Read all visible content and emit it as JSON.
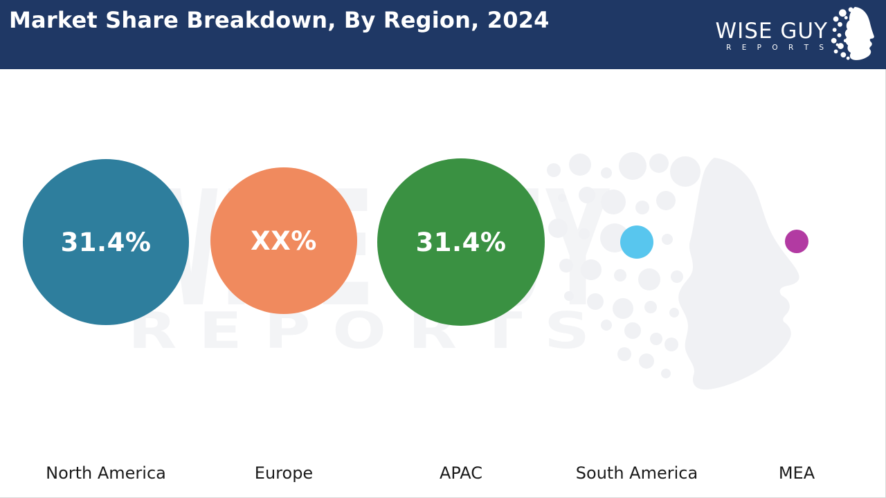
{
  "header": {
    "title": "Market Share Breakdown, By Region, 2024"
  },
  "logo": {
    "line1": "WISE GUY",
    "line2": "R E P O R T S"
  },
  "watermark": {
    "line1": "WISE GUY",
    "line2": "R E P O R T S"
  },
  "colors": {
    "header_bg": "#1f3865",
    "title_text": "#ffffff",
    "label_text": "#1a1a1a",
    "watermark_text": "#f3f4f6",
    "watermark_head": "#f0f1f4"
  },
  "chart_data": {
    "type": "bubble",
    "title": "Market Share Breakdown, By Region, 2024",
    "legend_position": "none",
    "categories": [
      "North America",
      "Europe",
      "APAC",
      "South America",
      "MEA"
    ],
    "points": [
      {
        "label": "North America",
        "value_label": "31.4%",
        "value": 31.4,
        "color": "#2e7e9d",
        "radius_px": 120
      },
      {
        "label": "Europe",
        "value_label": "XX%",
        "value": null,
        "color": "#f08a5e",
        "radius_px": 106
      },
      {
        "label": "APAC",
        "value_label": "31.4%",
        "value": 31.4,
        "color": "#3a9142",
        "radius_px": 121
      },
      {
        "label": "South America",
        "value_label": "",
        "value": null,
        "color": "#58c6ee",
        "radius_px": 24
      },
      {
        "label": "MEA",
        "value_label": "",
        "value": null,
        "color": "#b23aa2",
        "radius_px": 17
      }
    ]
  }
}
